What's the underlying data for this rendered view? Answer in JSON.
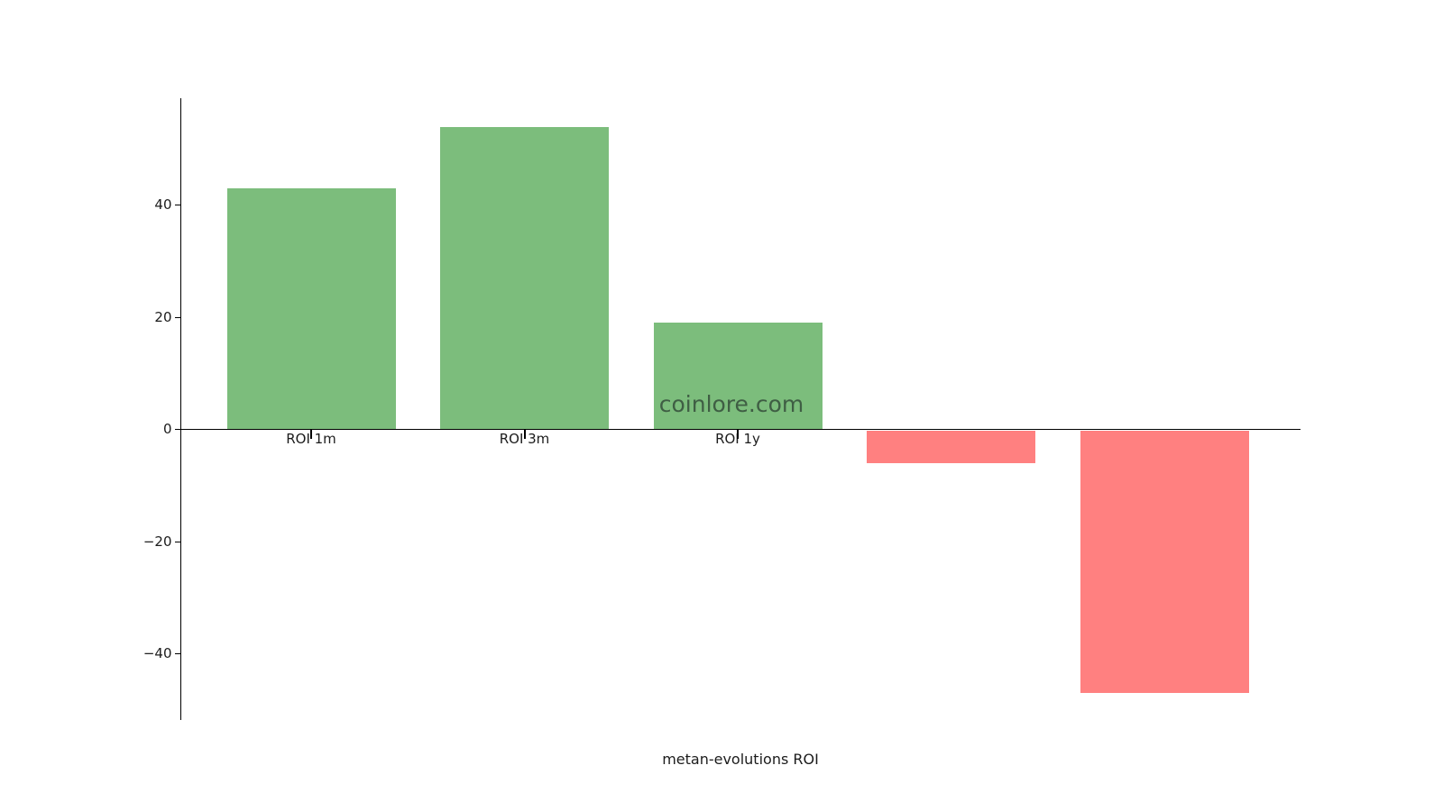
{
  "page": {
    "background": "#ffffff"
  },
  "watermark": {
    "text": "coinlore.com",
    "color": "#3f5e44"
  },
  "chart_data": {
    "type": "bar",
    "title": "metan-evolutions ROI",
    "categories": [
      "ROI 1m",
      "ROI 3m",
      "ROI 1y",
      "",
      ""
    ],
    "values": [
      43,
      54,
      19,
      -6,
      -47
    ],
    "positive_color": "#7cbd7c",
    "negative_color": "#ff8080",
    "axis_color": "#000000",
    "yticks": [
      {
        "label": "40",
        "value": 40
      },
      {
        "label": "20",
        "value": 20
      },
      {
        "label": "0",
        "value": 0
      },
      {
        "label": "−20",
        "value": -20
      },
      {
        "label": "−40",
        "value": -40
      }
    ],
    "ylim": [
      -51.8,
      59.1
    ],
    "xlabel": "",
    "ylabel": "",
    "grid": false,
    "legend": false,
    "notes": "green bars = positive ROI, red bars = negative ROI; x tick labels of the two negative bars are hidden behind the bars"
  }
}
